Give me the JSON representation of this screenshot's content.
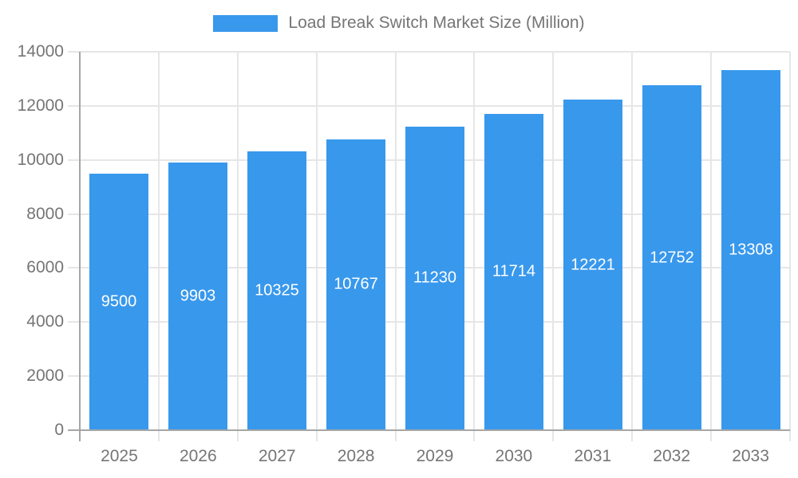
{
  "chart_data": {
    "type": "bar",
    "title": "Load Break Switch Market Size (Million)",
    "categories": [
      "2025",
      "2026",
      "2027",
      "2028",
      "2029",
      "2030",
      "2031",
      "2032",
      "2033"
    ],
    "values": [
      9500,
      9903,
      10325,
      10767,
      11230,
      11714,
      12221,
      12752,
      13308
    ],
    "xlabel": "",
    "ylabel": "",
    "ylim": [
      0,
      14000
    ],
    "y_ticks": [
      0,
      2000,
      4000,
      6000,
      8000,
      10000,
      12000,
      14000
    ],
    "grid": true,
    "legend_position": "top",
    "colors": {
      "bar": "#3898EC",
      "bar_label": "#FFFFFF",
      "axis_text": "#757575",
      "grid_line": "#E6E6E6",
      "axis_line": "#A6A6A6",
      "background": "#FFFFFF"
    }
  }
}
